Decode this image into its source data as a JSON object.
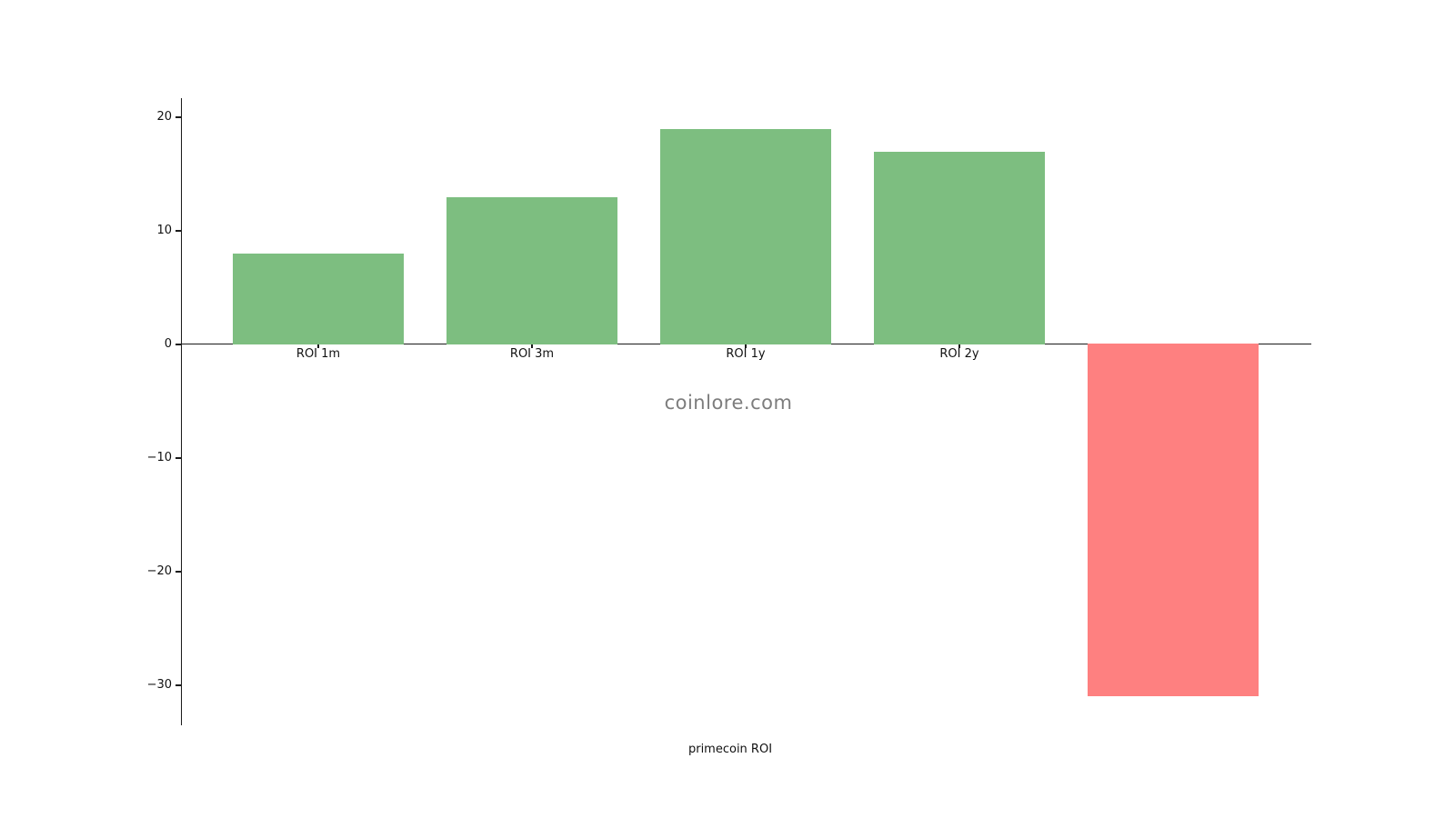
{
  "chart_data": {
    "type": "bar",
    "title": "primecoin ROI",
    "watermark": "coinlore.com",
    "categories": [
      "ROI 1m",
      "ROI 3m",
      "ROI 1y",
      "ROI 2y",
      ""
    ],
    "values": [
      8,
      13,
      19,
      17,
      -31
    ],
    "yticks": [
      20,
      10,
      0,
      -10,
      -20,
      -30
    ],
    "ylim": [
      -33.5,
      21.5
    ],
    "grid": false,
    "legend": "none",
    "colors": {
      "positive": "#7dbe80",
      "negative": "#fe8080",
      "axis": "#1a1a1a",
      "watermark_text": "#7d7d7d",
      "label_text": "#111111"
    }
  }
}
